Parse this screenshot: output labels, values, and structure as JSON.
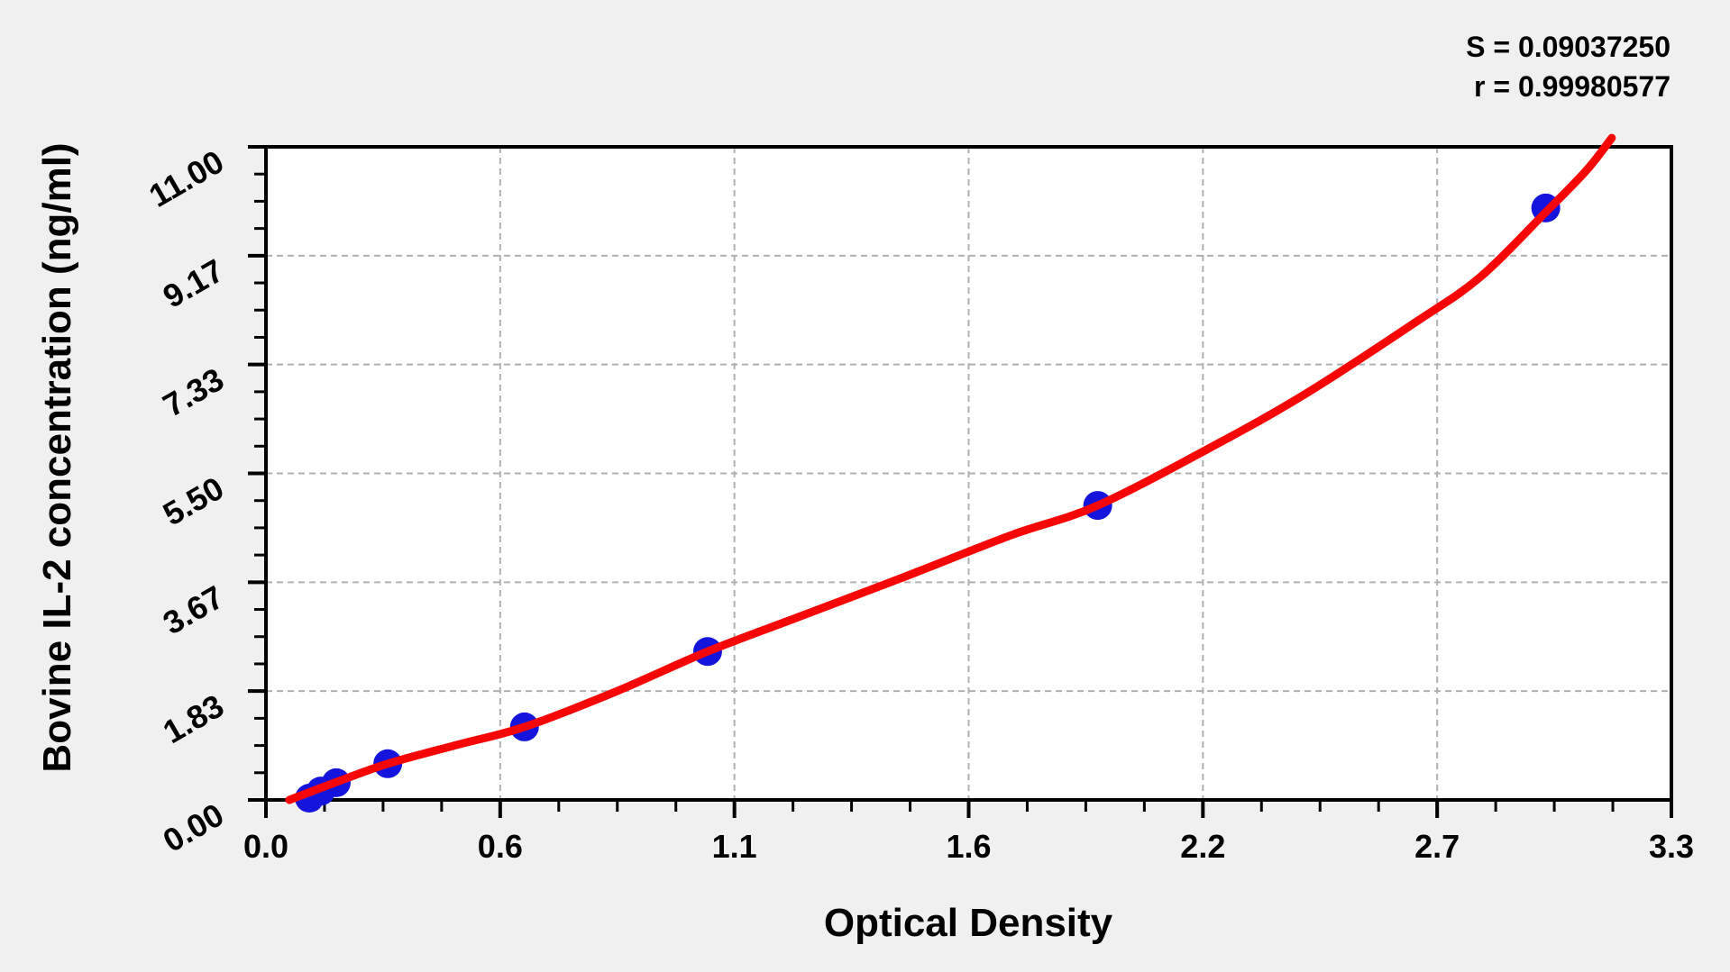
{
  "chart_data": {
    "type": "scatter",
    "title": "",
    "xlabel": "Optical Density",
    "ylabel": "Bovine IL-2 concentration (ng/ml)",
    "xlim": [
      0,
      3.3
    ],
    "ylim": [
      0,
      11
    ],
    "x_major_ticks": [
      0,
      0.55,
      1.1,
      1.65,
      2.2,
      2.75,
      3.3
    ],
    "x_tick_labels": [
      "0.0",
      "0.6",
      "1.1",
      "1.6",
      "2.2",
      "2.7",
      "3.3"
    ],
    "x_minor_step": 0.1375,
    "y_major_ticks": [
      0,
      1.8333,
      3.6667,
      5.5,
      7.3333,
      9.1667,
      11
    ],
    "y_tick_labels": [
      "0.00",
      "1.83",
      "3.67",
      "5.50",
      "7.33",
      "9.17",
      "11.00"
    ],
    "y_minor_step": 0.45833,
    "grid": "dashed gridlines at interior major ticks, both axes",
    "legend": "none",
    "stats": {
      "s_label": "S = 0.09037250",
      "r_label": "r = 0.99980577"
    },
    "series": [
      {
        "name": "standard-points",
        "type": "scatter",
        "color": "#1414dc",
        "marker_radius_px": 16,
        "points": [
          [
            0.102,
            0.03
          ],
          [
            0.129,
            0.15
          ],
          [
            0.165,
            0.29
          ],
          [
            0.286,
            0.61
          ],
          [
            0.607,
            1.23
          ],
          [
            1.037,
            2.5
          ],
          [
            1.953,
            4.96
          ],
          [
            3.005,
            9.97
          ]
        ]
      },
      {
        "name": "fitted-curve",
        "type": "line",
        "color": "#f60606",
        "points": [
          [
            0.055,
            0.0
          ],
          [
            0.165,
            0.3
          ],
          [
            0.286,
            0.61
          ],
          [
            0.45,
            0.93
          ],
          [
            0.607,
            1.23
          ],
          [
            0.82,
            1.82
          ],
          [
            1.037,
            2.5
          ],
          [
            1.25,
            3.08
          ],
          [
            1.5,
            3.76
          ],
          [
            1.75,
            4.46
          ],
          [
            1.953,
            4.96
          ],
          [
            2.237,
            6.01
          ],
          [
            2.45,
            6.88
          ],
          [
            2.7,
            8.05
          ],
          [
            2.85,
            8.8
          ],
          [
            3.005,
            9.9
          ],
          [
            3.1,
            10.6
          ],
          [
            3.16,
            11.15
          ]
        ]
      }
    ],
    "colors": {
      "background": "#f0f0f0",
      "plot_background": "#ffffff",
      "axis": "#000000",
      "gridline": "#b0b0b0",
      "point": "#1414dc",
      "curve": "#f60606"
    }
  }
}
